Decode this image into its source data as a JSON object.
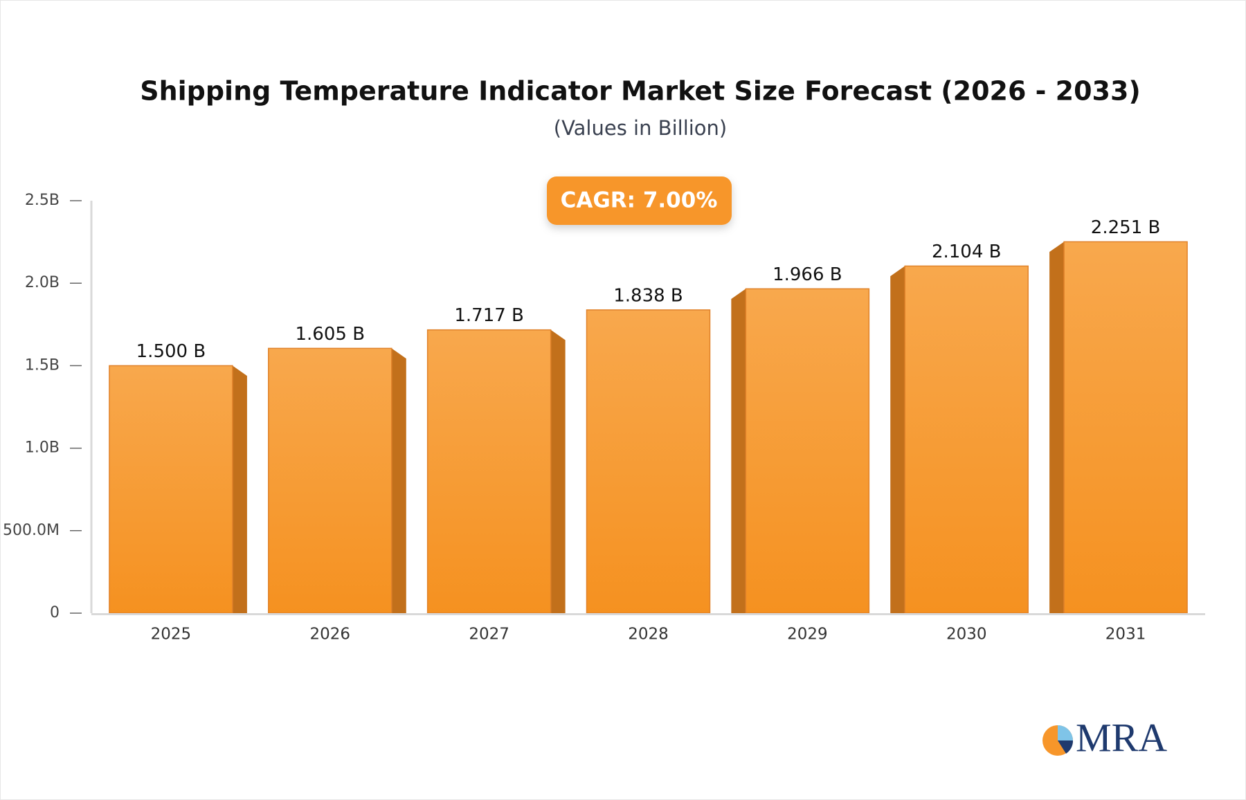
{
  "chart_data": {
    "type": "bar3d",
    "title": "Shipping Temperature Indicator Market Size Forecast (2026 - 2033)",
    "subtitle": "(Values in Billion)",
    "annotation": "CAGR: 7.00%",
    "categories": [
      "2025",
      "2026",
      "2027",
      "2028",
      "2029",
      "2030",
      "2031"
    ],
    "values": [
      1.5,
      1.605,
      1.717,
      1.838,
      1.966,
      2.104,
      2.251
    ],
    "value_labels": [
      "1.500 B",
      "1.605 B",
      "1.717 B",
      "1.838 B",
      "1.966 B",
      "2.104 B",
      "2.251 B"
    ],
    "color": "#f7962a",
    "ylim": [
      0,
      2.5
    ],
    "yticks": [
      0,
      {
        "value": 0.5,
        "label": "500.0M"
      },
      {
        "value": 1,
        "label": "1.0B"
      },
      {
        "value": 1.5,
        "label": "1.5B"
      },
      {
        "value": 2,
        "label": "2.0B"
      },
      {
        "value": 2.5,
        "label": "2.5B"
      }
    ],
    "grid": false
  },
  "logo": "MRA"
}
